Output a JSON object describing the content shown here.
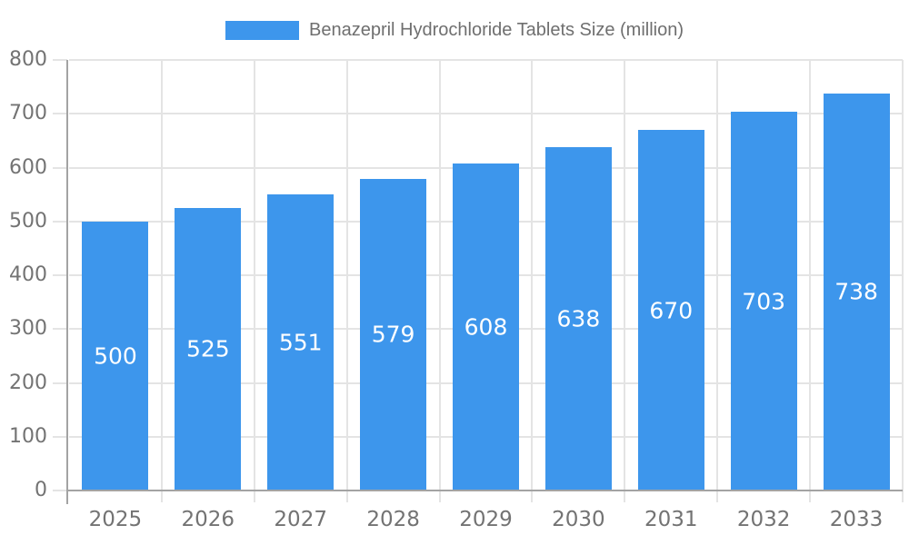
{
  "chart_data": {
    "type": "bar",
    "title": "",
    "xlabel": "",
    "ylabel": "",
    "categories": [
      "2025",
      "2026",
      "2027",
      "2028",
      "2029",
      "2030",
      "2031",
      "2032",
      "2033"
    ],
    "series": [
      {
        "name": "Benazepril Hydrochloride Tablets Size (million)",
        "values": [
          500,
          525,
          551,
          579,
          608,
          638,
          670,
          703,
          738
        ]
      }
    ],
    "value_labels_shown": true,
    "ylim": [
      0,
      800
    ],
    "ytick_step": 100,
    "yticks": [
      0,
      100,
      200,
      300,
      400,
      500,
      600,
      700,
      800
    ],
    "grid": "horizontal-and-vertical",
    "legend_position": "top-center",
    "colors": {
      "bar": "#3D96EC",
      "bar_value_text": "#FFFFFF",
      "axis_text": "#737373",
      "legend_text": "#6F6F6F",
      "axis_line": "#A3A3A3",
      "gridline": "#E4E4E4",
      "background": "#FFFFFF"
    }
  }
}
